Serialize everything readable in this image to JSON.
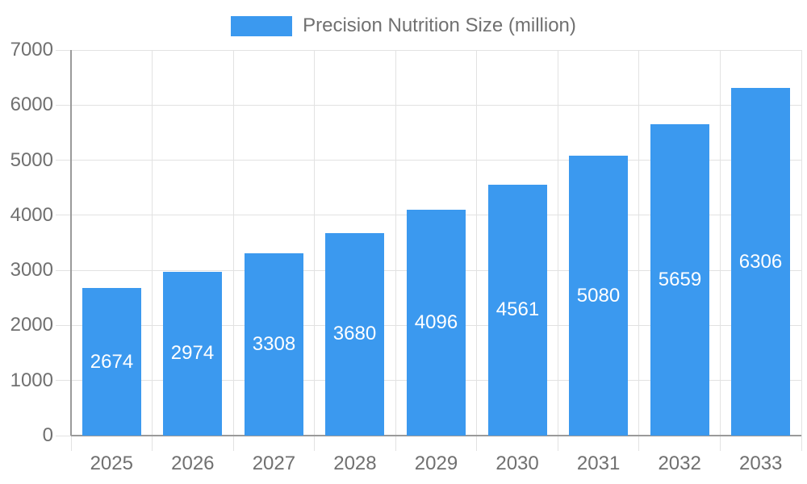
{
  "legend": {
    "label": "Precision Nutrition Size (million)"
  },
  "chart_data": {
    "type": "bar",
    "title": "",
    "categories": [
      "2025",
      "2026",
      "2027",
      "2028",
      "2029",
      "2030",
      "2031",
      "2032",
      "2033"
    ],
    "values": [
      2674,
      2974,
      3308,
      3680,
      4096,
      4561,
      5080,
      5659,
      6306
    ],
    "series_name": "Precision Nutrition Size (million)",
    "xlabel": "",
    "ylabel": "",
    "ylim": [
      0,
      7000
    ],
    "ytick_interval": 1000,
    "yticks": [
      "0",
      "1000",
      "2000",
      "3000",
      "4000",
      "5000",
      "6000",
      "7000"
    ],
    "grid": true,
    "legend_position": "top",
    "value_labels": "inside-center-white",
    "colors": {
      "bar": "#3b99ef",
      "value_label": "#ffffff",
      "axis_text": "#707070",
      "gridline": "#e2e2e2",
      "axis_line": "#9a9a9a",
      "background": "#ffffff"
    }
  }
}
